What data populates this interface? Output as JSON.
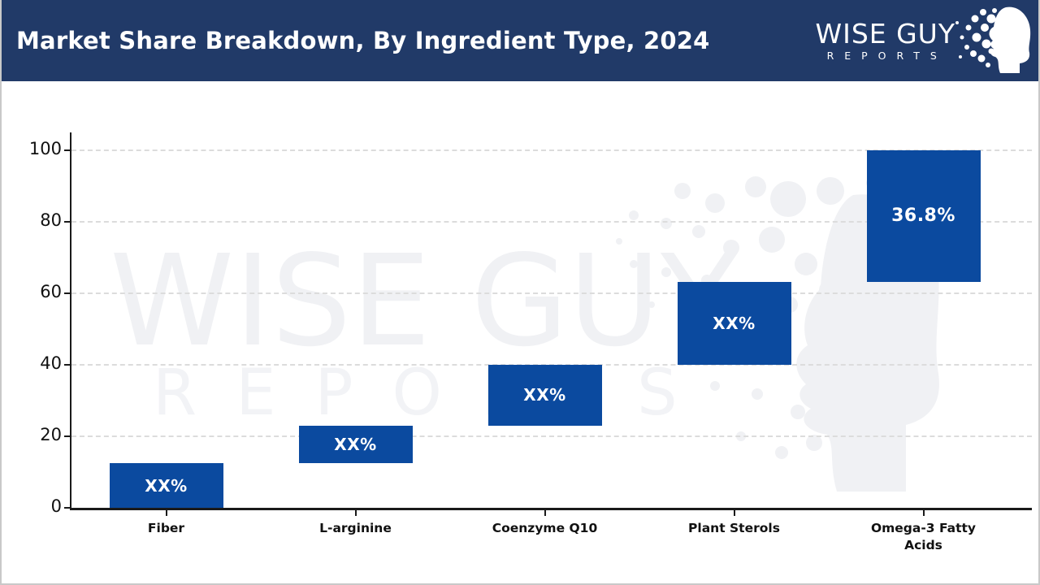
{
  "header": {
    "title": "Market Share Breakdown, By Ingredient Type, 2024",
    "logo": {
      "line1": "WISE GUY",
      "line2": "REPORTS"
    }
  },
  "watermark": {
    "line1": "WISE GUY",
    "line2": "REPORTS"
  },
  "colors": {
    "header_bg": "#213a68",
    "bar_blue": "#0b4a9f",
    "bar_label": "#ffffff",
    "grid": "#dcdcdc",
    "axis": "#1a1a1a",
    "watermark": "#f0f1f4"
  },
  "chart_data": {
    "type": "bar",
    "subtype": "floating-waterfall",
    "title": "Market Share Breakdown, By Ingredient Type, 2024",
    "xlabel": "",
    "ylabel": "",
    "categories": [
      "Fiber",
      "L-arginine",
      "Coenzyme Q10",
      "Plant Sterols",
      "Omega-3 Fatty Acids"
    ],
    "series": [
      {
        "name": "Market Share (%)",
        "segments": [
          {
            "category": "Fiber",
            "start": 0,
            "end": 12.5,
            "value_label": "XX%"
          },
          {
            "category": "L-arginine",
            "start": 12.5,
            "end": 23,
            "value_label": "XX%"
          },
          {
            "category": "Coenzyme Q10",
            "start": 23,
            "end": 40,
            "value_label": "XX%"
          },
          {
            "category": "Plant Sterols",
            "start": 40,
            "end": 63.2,
            "value_label": "XX%"
          },
          {
            "category": "Omega-3 Fatty Acids",
            "start": 63.2,
            "end": 100,
            "value_label": "36.8%"
          }
        ]
      }
    ],
    "ylim": [
      0,
      105
    ],
    "yticks": [
      0,
      20,
      40,
      60,
      80,
      100
    ],
    "grid": "horizontal-dashed",
    "legend": "none"
  }
}
